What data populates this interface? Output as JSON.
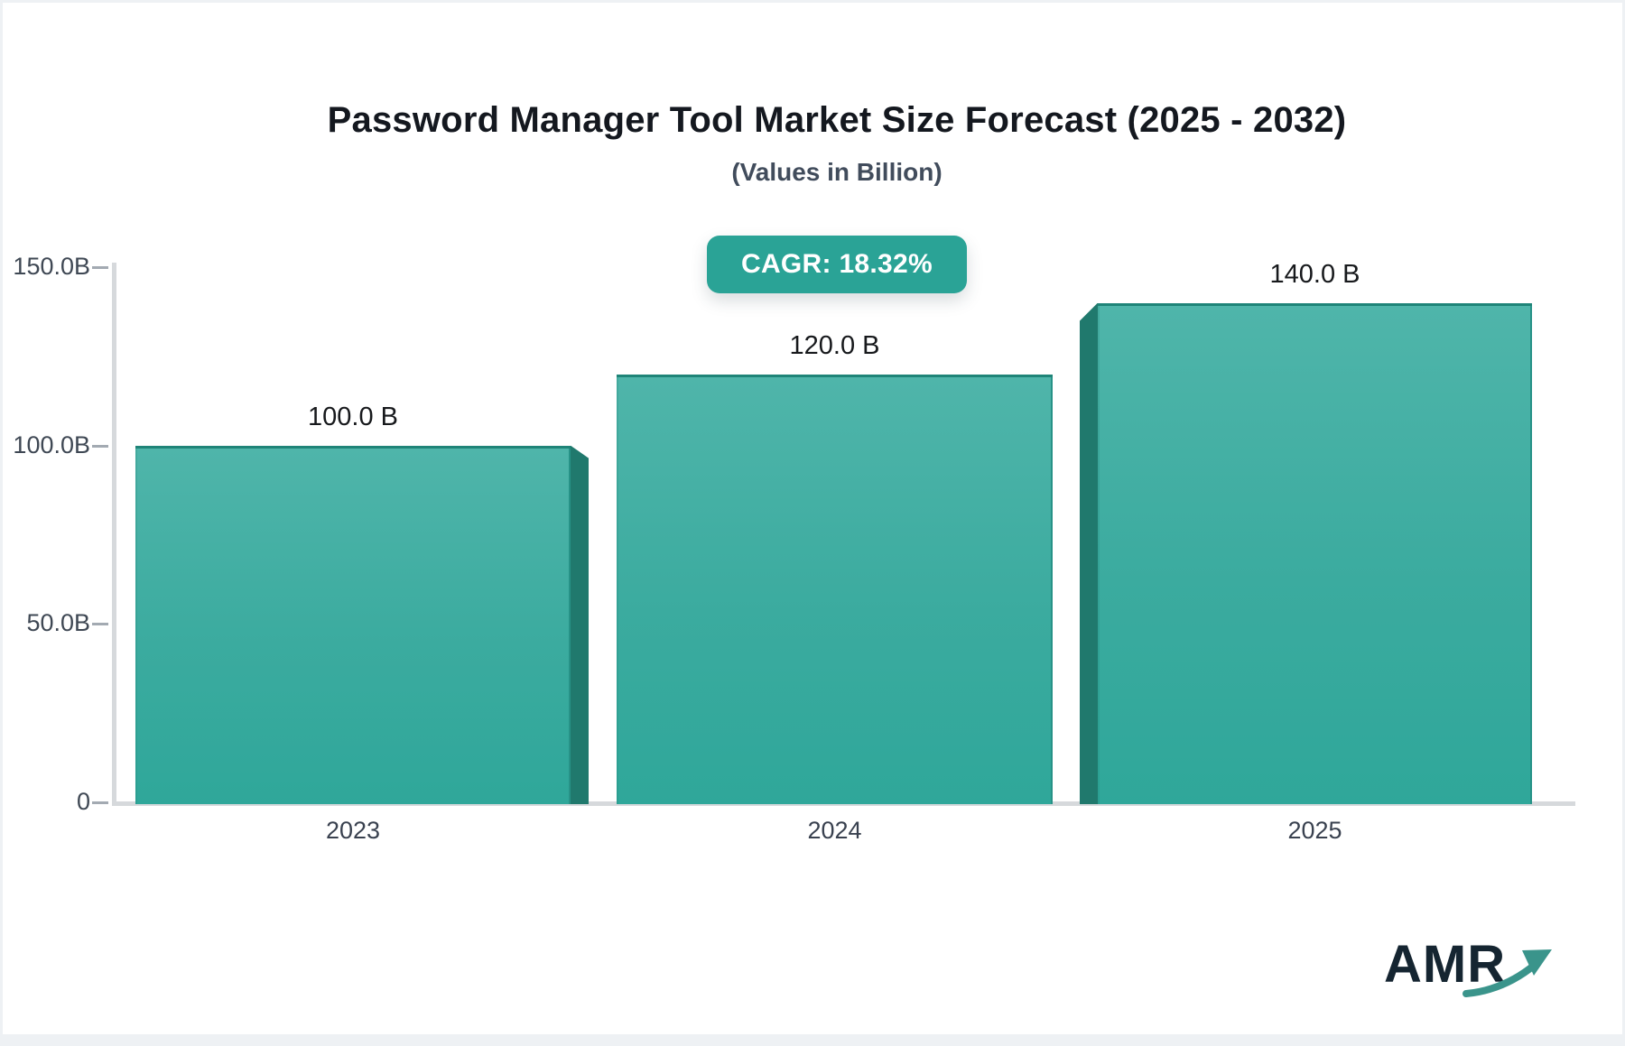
{
  "chart_data": {
    "type": "bar",
    "title": "Password Manager Tool Market Size Forecast (2025 - 2032)",
    "subtitle": "(Values in Billion)",
    "badge_label": "CAGR: 18.32%",
    "categories": [
      "2023",
      "2024",
      "2025"
    ],
    "values": [
      100.0,
      120.0,
      140.0
    ],
    "value_labels": [
      "100.0 B",
      "120.0 B",
      "140.0 B"
    ],
    "xlabel": "",
    "ylabel": "",
    "ylim": [
      0,
      150
    ],
    "yticks": [
      {
        "value": 150,
        "label": "150.0B"
      },
      {
        "value": 100,
        "label": "100.0B"
      },
      {
        "value": 50,
        "label": "50.0B"
      },
      {
        "value": 0,
        "label": "0"
      }
    ],
    "grid": false,
    "legend": false,
    "bar_style": "3d-extruded",
    "colors": {
      "bar_gradient_top": "#4fb5aa",
      "bar_gradient_bottom": "#2fa79a",
      "bar_3d_edge": "#20796d",
      "bar_outline": "#1f8478",
      "badge_background": "#2aa396",
      "badge_text": "#ffffff",
      "axis_line": "#d6d9dc",
      "tick_text": "#3f4854",
      "value_label_text": "#17191c",
      "title_text": "#14181f"
    }
  },
  "branding": {
    "logo_text": "AMR",
    "logo_text_color": "#152531",
    "arrow_icon": "trend-up-arrow-icon",
    "arrow_color": "#3a948b"
  }
}
